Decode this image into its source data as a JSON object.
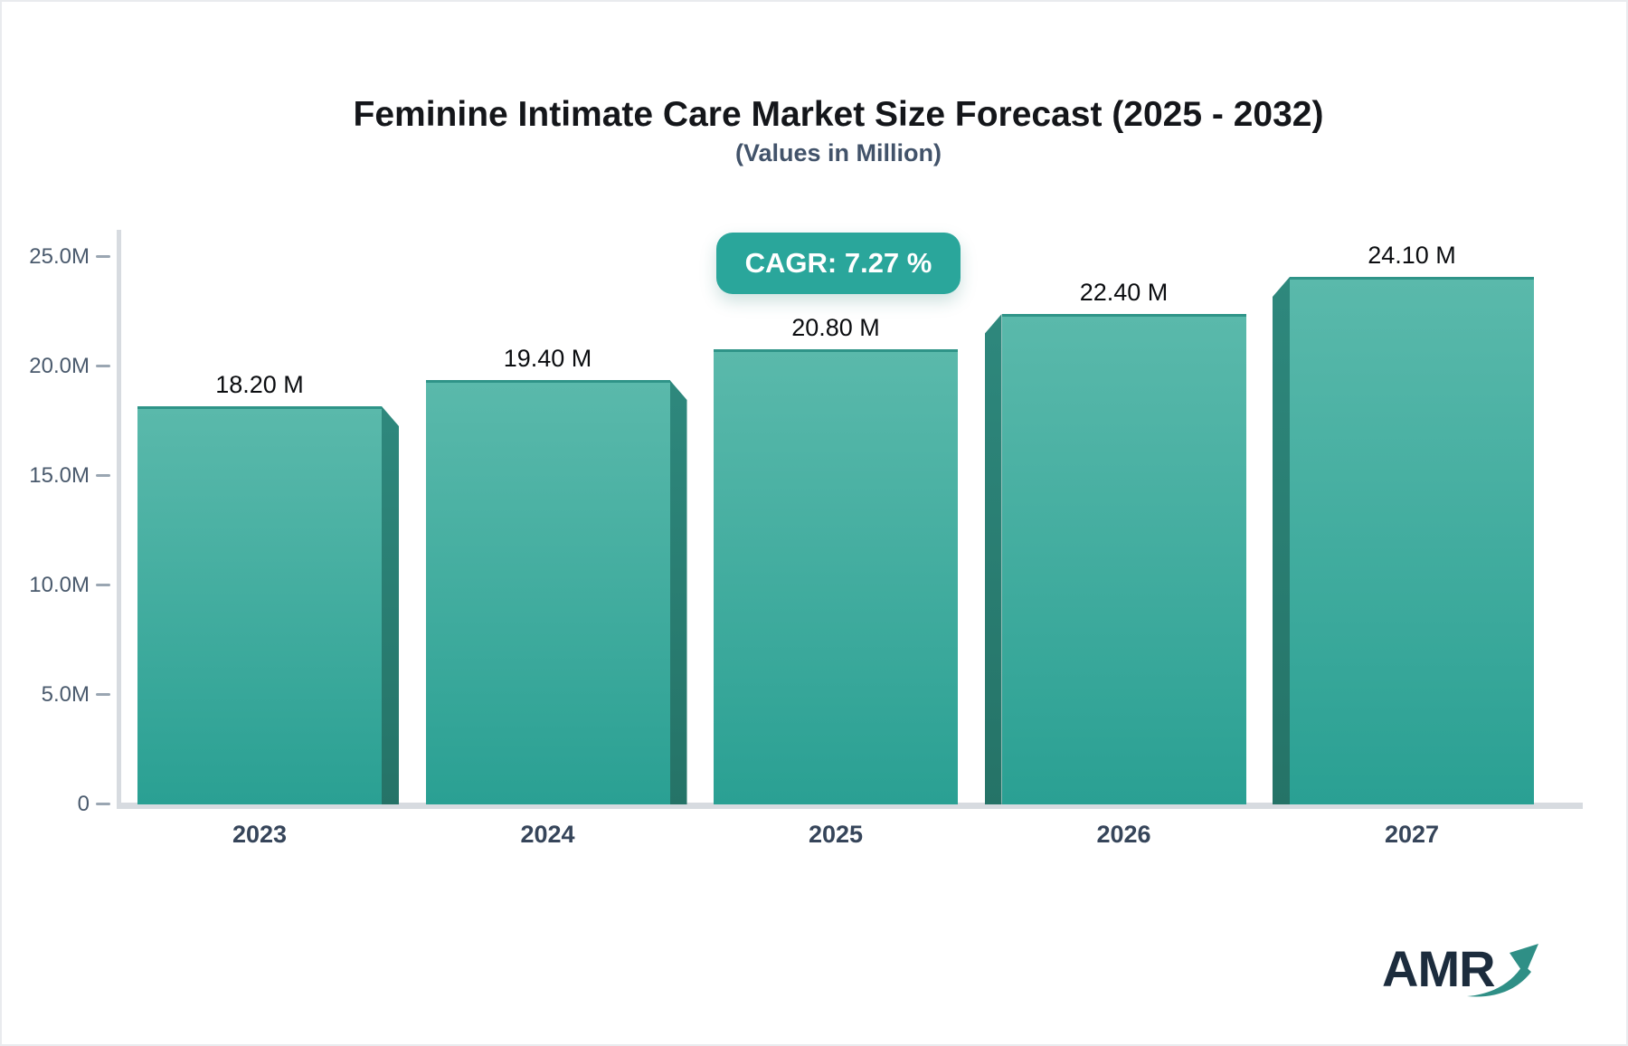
{
  "page": {
    "title": "Feminine Intimate Care Market Size Forecast (2025 - 2032)",
    "subtitle": "(Values in Million)"
  },
  "badge": {
    "label": "CAGR: 7.27 %"
  },
  "logo": {
    "text": "AMR"
  },
  "colors": {
    "bar_face_top": "#5ab9ab",
    "bar_face_bottom": "#2aa093",
    "bar_face_edge": "#2f9488",
    "bar_side_top": "#2e887d",
    "bar_side_bottom": "#257367",
    "badge_bg": "#2aa69b",
    "badge_text": "#ffffff",
    "axis_line": "#d7dbe0",
    "tick_text": "#4a5a6d",
    "year_text": "#36455a",
    "value_text": "#0b0d10",
    "title_text": "#14161a",
    "subtitle_text": "#42536a",
    "logo_text": "#1c2c3d",
    "logo_arrow": "#2f8f86"
  },
  "chart_data": {
    "type": "bar",
    "title": "Feminine Intimate Care Market Size Forecast (2025 - 2032)",
    "subtitle": "(Values in Million)",
    "categories": [
      "2023",
      "2024",
      "2025",
      "2026",
      "2027"
    ],
    "values": [
      18.2,
      19.4,
      20.8,
      22.4,
      24.1
    ],
    "value_labels": [
      "18.20 M",
      "19.40 M",
      "20.80 M",
      "22.40 M",
      "24.10 M"
    ],
    "annotations": [
      "CAGR: 7.27 %"
    ],
    "xlabel": "",
    "ylabel": "",
    "ylim": [
      0,
      25
    ],
    "yticks": [
      {
        "value": 25,
        "label": "25.0M"
      },
      {
        "value": 20,
        "label": "20.0M"
      },
      {
        "value": 15,
        "label": "15.0M"
      },
      {
        "value": 10,
        "label": "10.0M"
      },
      {
        "value": 5,
        "label": "5.0M"
      },
      {
        "value": 0,
        "label": "0"
      }
    ],
    "grid": false,
    "legend": false,
    "bar_style": "3d-extruded-toward-center"
  }
}
